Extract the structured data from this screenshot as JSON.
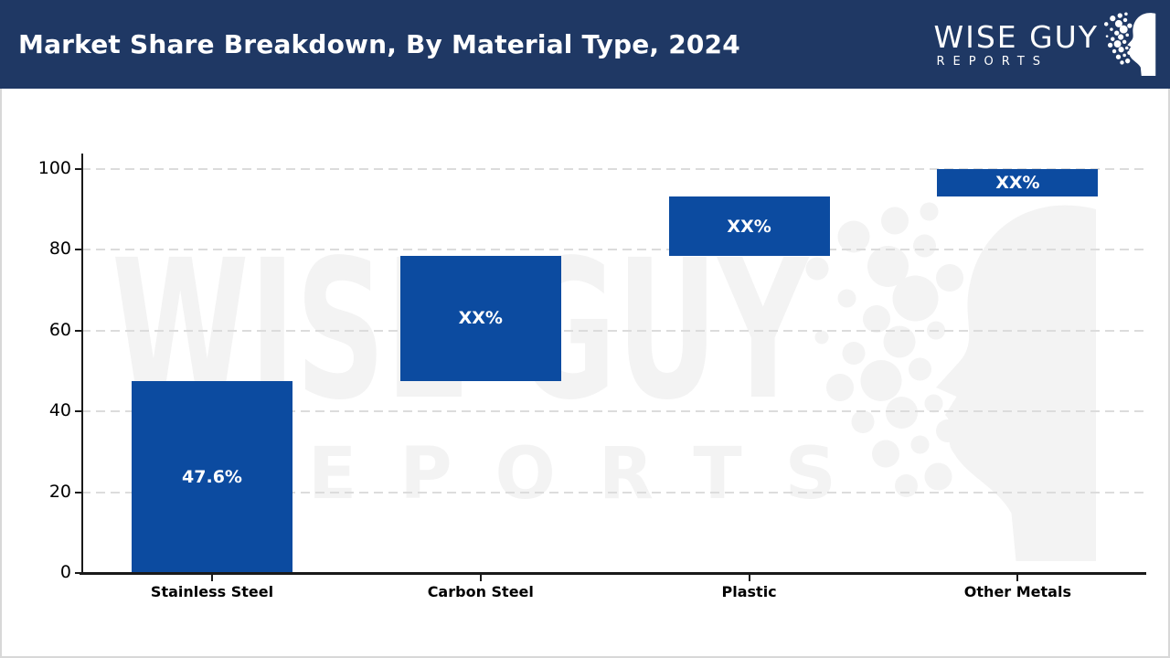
{
  "header": {
    "title": "Market Share Breakdown, By Material Type, 2024",
    "logo": {
      "line1": "WISE GUY",
      "line2": "REPORTS"
    }
  },
  "watermark": {
    "line1": "WISE GUY",
    "line2": "REPORTS"
  },
  "chart_data": {
    "type": "bar",
    "subtype": "waterfall",
    "title": "Market Share Breakdown, By Material Type, 2024",
    "categories": [
      "Stainless Steel",
      "Carbon Steel",
      "Plastic",
      "Other Metals"
    ],
    "segments": [
      {
        "category": "Stainless Steel",
        "start": 0,
        "end": 47.6,
        "label": "47.6%"
      },
      {
        "category": "Carbon Steel",
        "start": 47.6,
        "end": 78.5,
        "label": "XX%"
      },
      {
        "category": "Plastic",
        "start": 78.5,
        "end": 93.2,
        "label": "XX%"
      },
      {
        "category": "Other Metals",
        "start": 93.2,
        "end": 100,
        "label": "XX%"
      }
    ],
    "yticks": [
      0,
      20,
      40,
      60,
      80,
      100
    ],
    "ylim": [
      0,
      104
    ],
    "xlabel": "",
    "ylabel": "",
    "grid": true,
    "legend": false,
    "colors": {
      "bar": "#0c4ba0",
      "bar_label": "#ffffff",
      "grid_line": "#dcdcdc",
      "axis": "#1a1a1a",
      "header_bg": "#1f3864",
      "page_border": "#d8d8d8",
      "watermark": "#f3f3f3"
    }
  }
}
